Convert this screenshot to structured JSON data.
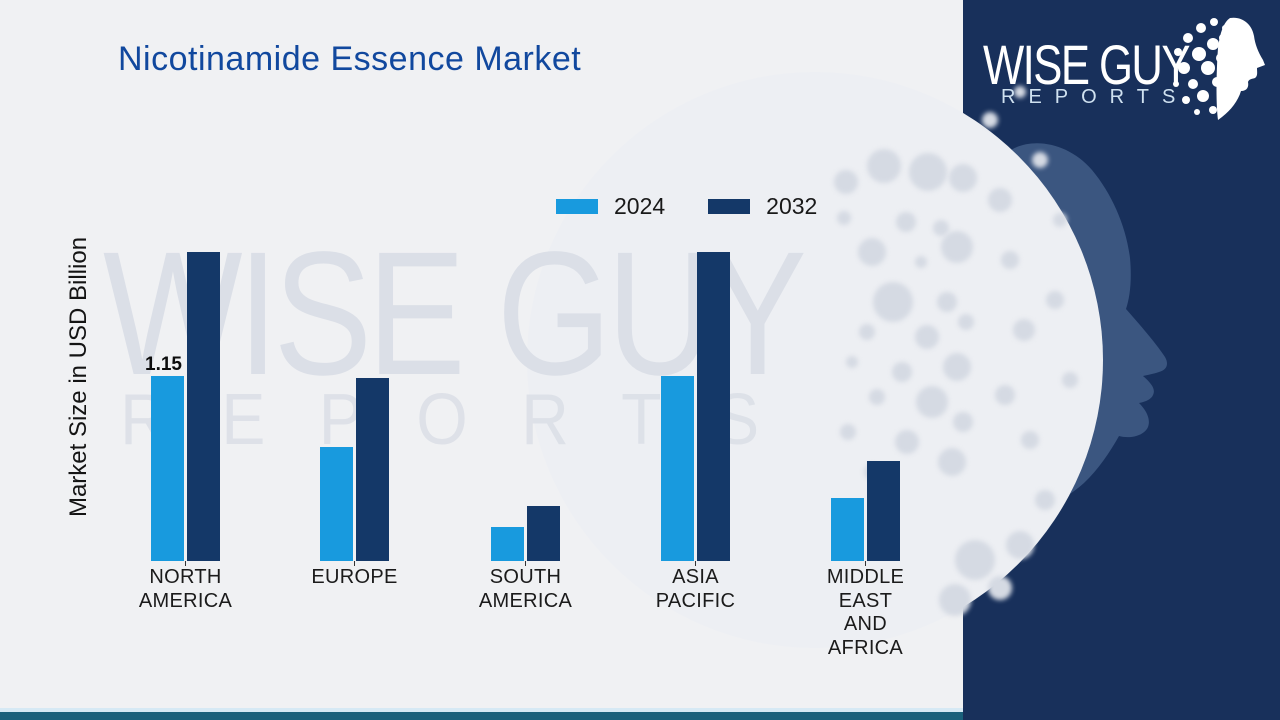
{
  "title": "Nicotinamide Essence Market",
  "y_axis_label": "Market Size in USD Billion",
  "watermark": {
    "line1": "WISE GUY",
    "line2": "REPORTS"
  },
  "logo": {
    "line1": "WISE GUY",
    "line2": "REPORTS"
  },
  "colors": {
    "background": "#f0f1f3",
    "panel_navy": "#18305b",
    "bar_2024_blue": "#189ade",
    "bar_2032_navy": "#143868",
    "face_silhouette": "#3b5680",
    "bottom_teal": "#1a607b",
    "title_blue": "#11489e"
  },
  "chart_data": {
    "type": "bar",
    "title": "Nicotinamide Essence Market",
    "ylabel": "Market Size in USD Billion",
    "xlabel": "",
    "categories": [
      "NORTH AMERICA",
      "EUROPE",
      "SOUTH AMERICA",
      "ASIA PACIFIC",
      "MIDDLE EAST AND AFRICA"
    ],
    "category_label_lines": [
      [
        "NORTH",
        "AMERICA"
      ],
      [
        "EUROPE"
      ],
      [
        "SOUTH",
        "AMERICA"
      ],
      [
        "ASIA",
        "PACIFIC"
      ],
      [
        "MIDDLE",
        "EAST",
        "AND",
        "AFRICA"
      ]
    ],
    "series": [
      {
        "name": "2024",
        "color": "#189ade",
        "values": [
          1.15,
          0.71,
          0.21,
          1.15,
          0.39
        ]
      },
      {
        "name": "2032",
        "color": "#143868",
        "values": [
          1.92,
          1.14,
          0.34,
          1.92,
          0.62
        ]
      }
    ],
    "annotations": [
      {
        "series": "2024",
        "category": "NORTH AMERICA",
        "text": "1.15"
      }
    ],
    "ylim": [
      0,
      2.1
    ],
    "grid": false,
    "axis_line": false,
    "legend_position": "top"
  }
}
